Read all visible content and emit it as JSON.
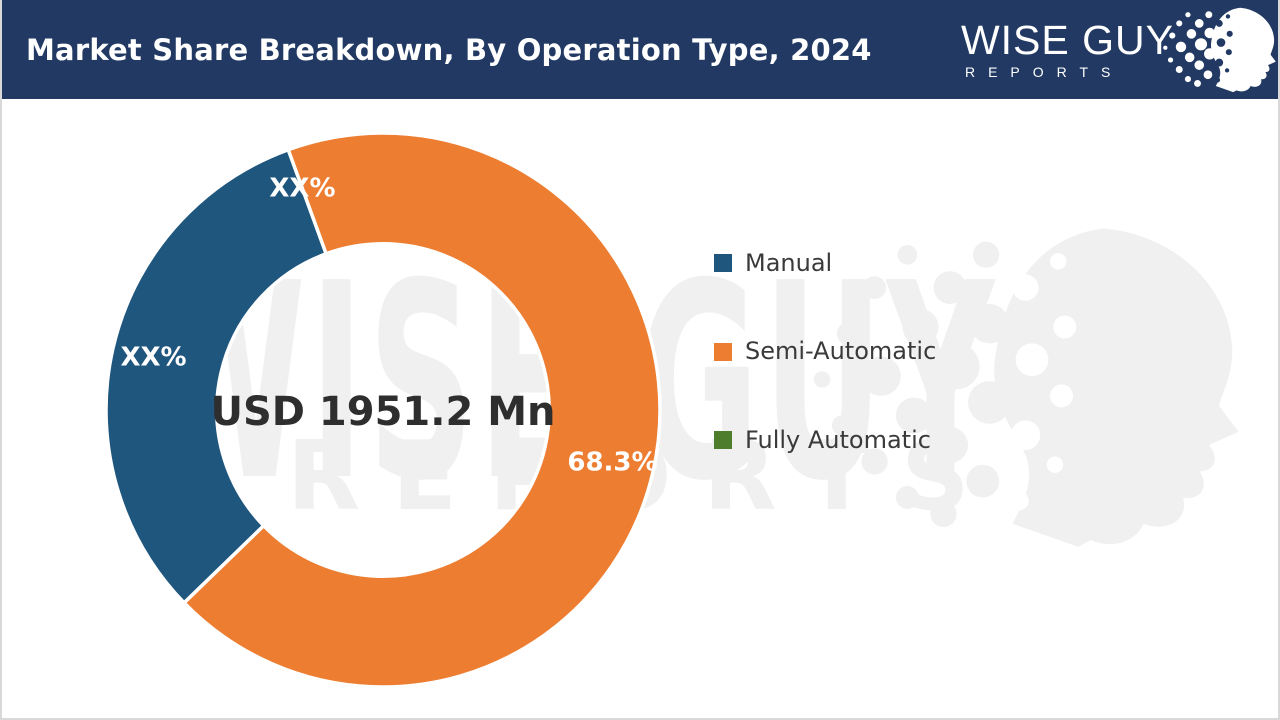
{
  "header": {
    "title": "Market Share Breakdown, By Operation Type, 2024",
    "logo": {
      "line1": "WISE GUY",
      "line2": "REPORTS"
    }
  },
  "watermark": {
    "line1": "WISE GUY",
    "line2": "REPORTS"
  },
  "chart_data": {
    "type": "pie",
    "subtype": "donut",
    "title": "Market Share Breakdown, By Operation Type, 2024",
    "center_label": "USD 1951.2 Mn",
    "start_angle_deg": 110,
    "counterclockwise": true,
    "outer_radius_ratio": 1.0,
    "inner_radius_ratio": 0.6,
    "label_radius_ratio": 0.85,
    "legend_position": "right",
    "slices": [
      {
        "label": "Manual",
        "value_pct": 31.7,
        "display_pct": "XX%",
        "color": "#1f567d"
      },
      {
        "label": "Semi-Automatic",
        "value_pct": 68.3,
        "display_pct": "68.3%",
        "color": "#ed7d31"
      },
      {
        "label": "Fully Automatic",
        "value_pct": 0.0,
        "display_pct": "XX%",
        "color": "#4e7d2b"
      }
    ],
    "colors": {
      "gap_stroke": "#ffffff",
      "center_text": "#2e2e2e",
      "header_bg": "#223a63",
      "watermark": "#f0f0f0"
    }
  }
}
